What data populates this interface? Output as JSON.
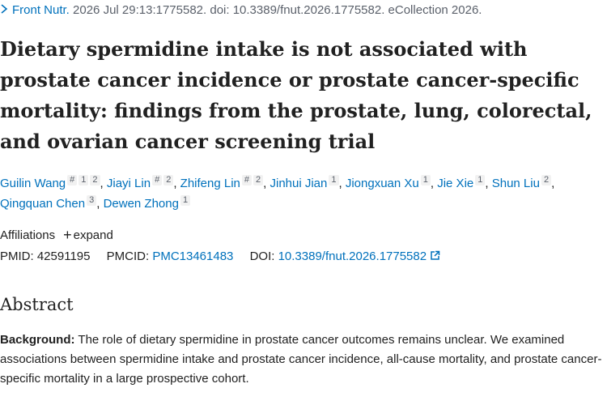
{
  "citation": {
    "journal": "Front Nutr.",
    "details": "2026 Jul 29:13:1775582. doi: 10.3389/fnut.2026.1775582. eCollection 2026."
  },
  "title": "Dietary spermidine intake is not associated with prostate cancer incidence or prostate cancer-specific mortality: findings from the prostate, lung, colorectal, and ovarian cancer screening trial",
  "author_separator": ",",
  "authors": [
    {
      "name": "Guilin Wang",
      "equal": "#",
      "affiliations": [
        1,
        2
      ]
    },
    {
      "name": "Jiayi Lin",
      "equal": "#",
      "affiliations": [
        2
      ]
    },
    {
      "name": "Zhifeng Lin",
      "equal": "#",
      "affiliations": [
        2
      ]
    },
    {
      "name": "Jinhui Jian",
      "affiliations": [
        1
      ]
    },
    {
      "name": "Jiongxuan Xu",
      "affiliations": [
        1
      ]
    },
    {
      "name": "Jie Xie",
      "affiliations": [
        1
      ]
    },
    {
      "name": "Shun Liu",
      "affiliations": [
        2
      ]
    },
    {
      "name": "Qingquan Chen",
      "affiliations": [
        3
      ]
    },
    {
      "name": "Dewen Zhong",
      "affiliations": [
        1
      ]
    }
  ],
  "affiliations_toggle": {
    "label": "Affiliations",
    "action": "expand"
  },
  "ids": {
    "pmid_label": "PMID:",
    "pmid": "42591195",
    "pmcid_label": "PMCID:",
    "pmcid": "PMC13461483",
    "doi_label": "DOI:",
    "doi": "10.3389/fnut.2026.1775582"
  },
  "abstract": {
    "heading": "Abstract",
    "sections": [
      {
        "label": "Background:",
        "text": "The role of dietary spermidine in prostate cancer outcomes remains unclear. We examined associations between spermidine intake and prostate cancer incidence, all-cause mortality, and prostate cancer-specific mortality in a large prospective cohort."
      }
    ]
  }
}
